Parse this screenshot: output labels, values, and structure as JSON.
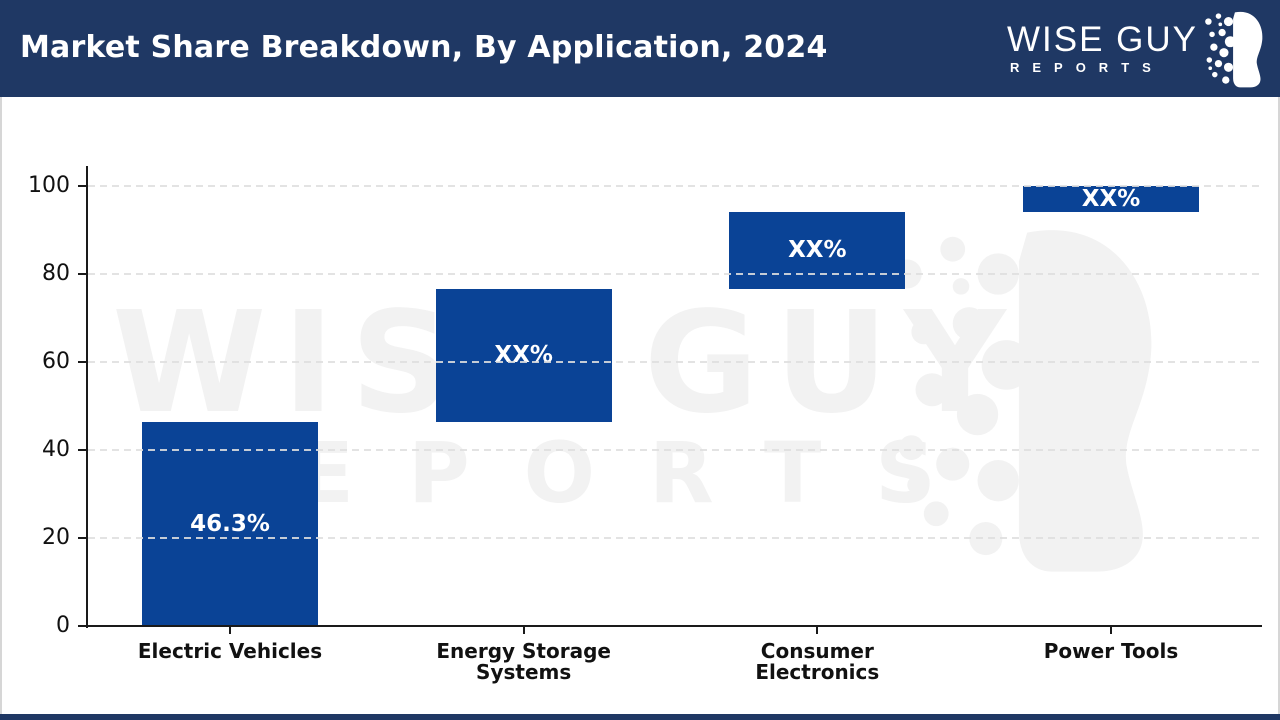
{
  "header": {
    "title": "Market Share Breakdown, By Application, 2024",
    "logo": {
      "line1": "WISE GUY",
      "line2": "REPORTS"
    }
  },
  "watermark": {
    "line1": "WISE GUY",
    "line2": "REPORTS"
  },
  "colors": {
    "header_bg": "#1F3864",
    "bar": "#0A4396",
    "bar_label": "#FFFFFF",
    "gridline": "#DFDFDF",
    "axis": "#1A1A1A",
    "watermark": "#F2F2F2",
    "background": "#FFFFFF"
  },
  "chart_data": {
    "type": "bar",
    "subtype": "waterfall",
    "title": "Market Share Breakdown, By Application, 2024",
    "xlabel": "",
    "ylabel": "",
    "categories": [
      "Electric Vehicles",
      "Energy Storage Systems",
      "Consumer Electronics",
      "Power Tools"
    ],
    "bars": [
      {
        "category": "Electric Vehicles",
        "category_lines": [
          "Electric Vehicles"
        ],
        "start": 0,
        "end": 46.3,
        "label": "46.3%"
      },
      {
        "category": "Energy Storage Systems",
        "category_lines": [
          "Energy Storage",
          "Systems"
        ],
        "start": 46.3,
        "end": 76.5,
        "label": "XX%"
      },
      {
        "category": "Consumer Electronics",
        "category_lines": [
          "Consumer",
          "Electronics"
        ],
        "start": 76.5,
        "end": 94.0,
        "label": "XX%"
      },
      {
        "category": "Power Tools",
        "category_lines": [
          "Power Tools"
        ],
        "start": 94.0,
        "end": 100.0,
        "label": "XX%"
      }
    ],
    "ylim": [
      0,
      104
    ],
    "yticks": [
      0,
      20,
      40,
      60,
      80,
      100
    ],
    "grid": "dashed horizontal, drawn over bars",
    "legend": "none"
  }
}
